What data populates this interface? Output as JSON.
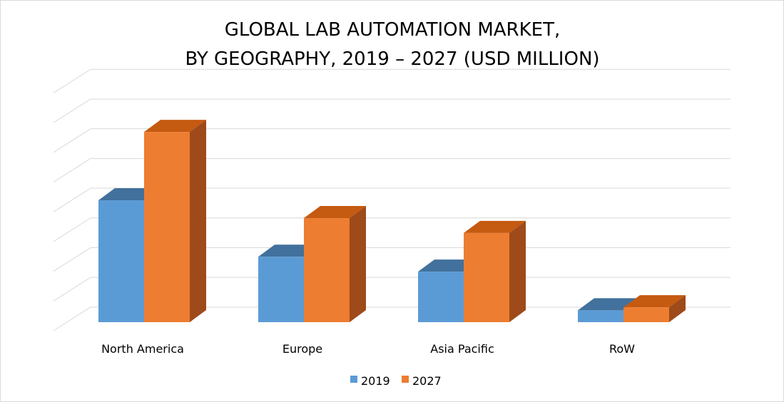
{
  "chart_data": {
    "type": "bar",
    "title_lines": [
      "GLOBAL LAB AUTOMATION MARKET,",
      "BY GEOGRAPHY, 2019 – 2027 (USD MILLION)"
    ],
    "categories": [
      "North America",
      "Europe",
      "Asia Pacific",
      "RoW"
    ],
    "series": [
      {
        "name": "2019",
        "values": [
          4.1,
          2.2,
          1.7,
          0.4
        ],
        "color": "#5B9BD5",
        "top_color": "#41719C"
      },
      {
        "name": "2027",
        "values": [
          6.4,
          3.5,
          3.0,
          0.5
        ],
        "color": "#ED7D31",
        "top_color": "#C55A11",
        "side_color": "#9E4A1A"
      }
    ],
    "ylim": [
      0,
      8
    ],
    "grid": true,
    "y_tick_labels_shown": false,
    "three_d": true,
    "legend_position": "bottom"
  }
}
